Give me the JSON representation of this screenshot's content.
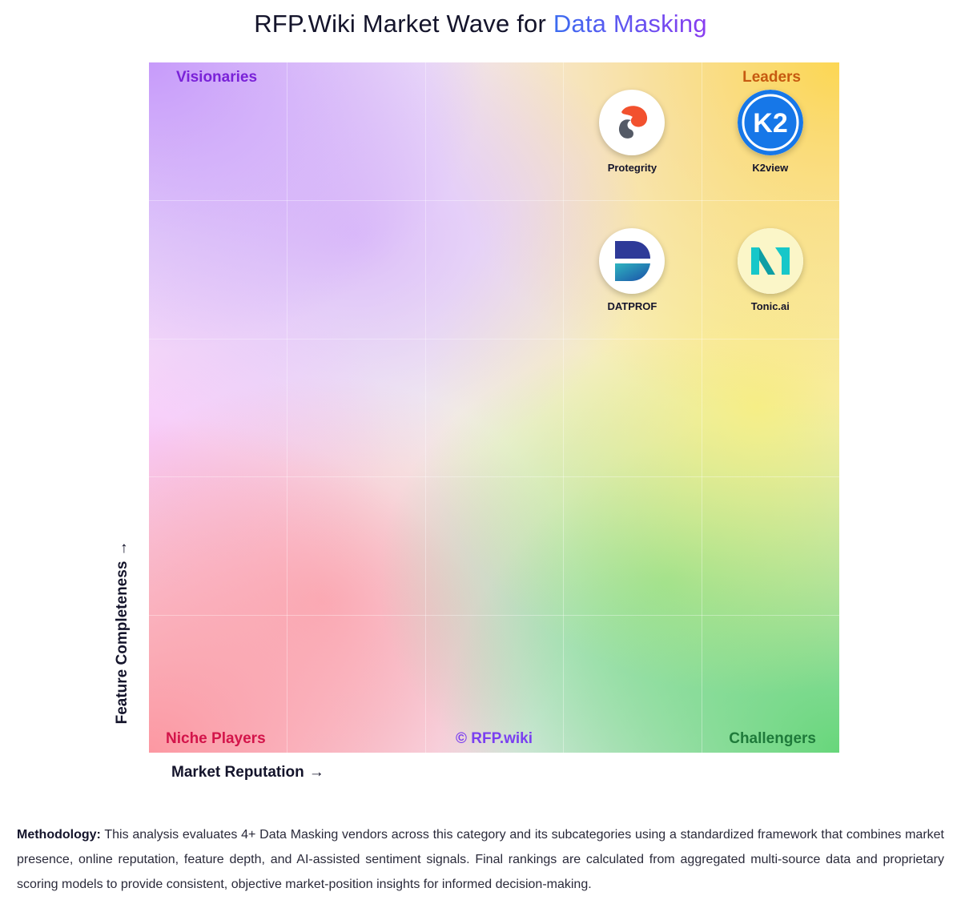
{
  "title": {
    "prefix": "RFP.Wiki Market Wave for ",
    "highlight": "Data Masking"
  },
  "quadrants": {
    "top_left": "Visionaries",
    "top_right": "Leaders",
    "bottom_left": "Niche Players",
    "bottom_right": "Challengers"
  },
  "watermark": "© RFP.wiki",
  "axes": {
    "x_label": "Market Reputation",
    "y_label": "Feature Completeness",
    "x_arrow": "→",
    "y_arrow": "→"
  },
  "colors": {
    "visionaries": "#7a22d8",
    "leaders": "#c65a10",
    "niche": "#d3144a",
    "challengers": "#1e7a3a",
    "title_gradient_start": "#3b6cf0",
    "title_gradient_end": "#8a3cf0"
  },
  "chart_data": {
    "type": "scatter",
    "xlim": [
      0,
      5
    ],
    "ylim": [
      0,
      5
    ],
    "grid": true,
    "points": [
      {
        "name": "Protegrity",
        "x": 3.5,
        "y": 4.5,
        "icon": "protegrity-logo-icon"
      },
      {
        "name": "K2view",
        "x": 4.5,
        "y": 4.5,
        "icon": "k2view-logo-icon"
      },
      {
        "name": "DATPROF",
        "x": 3.5,
        "y": 3.5,
        "icon": "datprof-logo-icon"
      },
      {
        "name": "Tonic.ai",
        "x": 4.5,
        "y": 3.5,
        "icon": "tonic-logo-icon"
      }
    ]
  },
  "methodology": {
    "label": "Methodology:",
    "text": " This analysis evaluates 4+ Data Masking vendors across this category and its subcategories using a standardized framework that combines market presence, online reputation, feature depth, and AI-assisted sentiment signals. Final rankings are calculated from aggregated multi-source data and proprietary scoring models to provide consistent, objective market-position insights for informed decision-making."
  }
}
